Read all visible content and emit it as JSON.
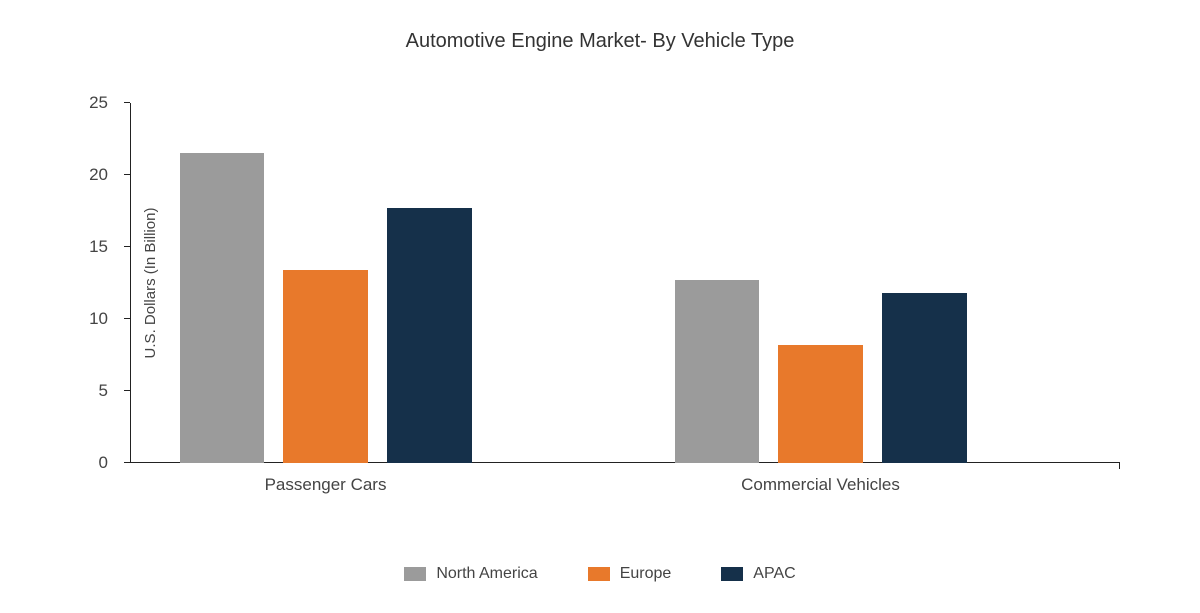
{
  "chart": {
    "type": "bar",
    "title": "Automotive Engine Market- By Vehicle Type",
    "title_fontsize": 20,
    "title_color": "#333333",
    "background_color": "#ffffff",
    "ylabel": "U.S. Dollars (In Billion)",
    "ylabel_fontsize": 15,
    "xlabel_fontsize": 17,
    "tick_fontsize": 17,
    "legend_fontsize": 16,
    "axis_color": "#222222",
    "ylim": [
      0,
      25
    ],
    "ytick_step": 5,
    "yticks": [
      0,
      5,
      10,
      15,
      20,
      25
    ],
    "categories": [
      "Passenger Cars",
      "Commercial Vehicles"
    ],
    "series": [
      {
        "name": "North America",
        "color": "#9b9b9b",
        "values": [
          21.5,
          12.7
        ]
      },
      {
        "name": "Europe",
        "color": "#e8792b",
        "values": [
          13.4,
          8.2
        ]
      },
      {
        "name": "APAC",
        "color": "#15304a",
        "values": [
          17.7,
          11.8
        ]
      }
    ],
    "bar_width_pct": 8.5,
    "group_gap_pct": 2.0,
    "group_left_offsets_pct": [
      5,
      55
    ]
  }
}
